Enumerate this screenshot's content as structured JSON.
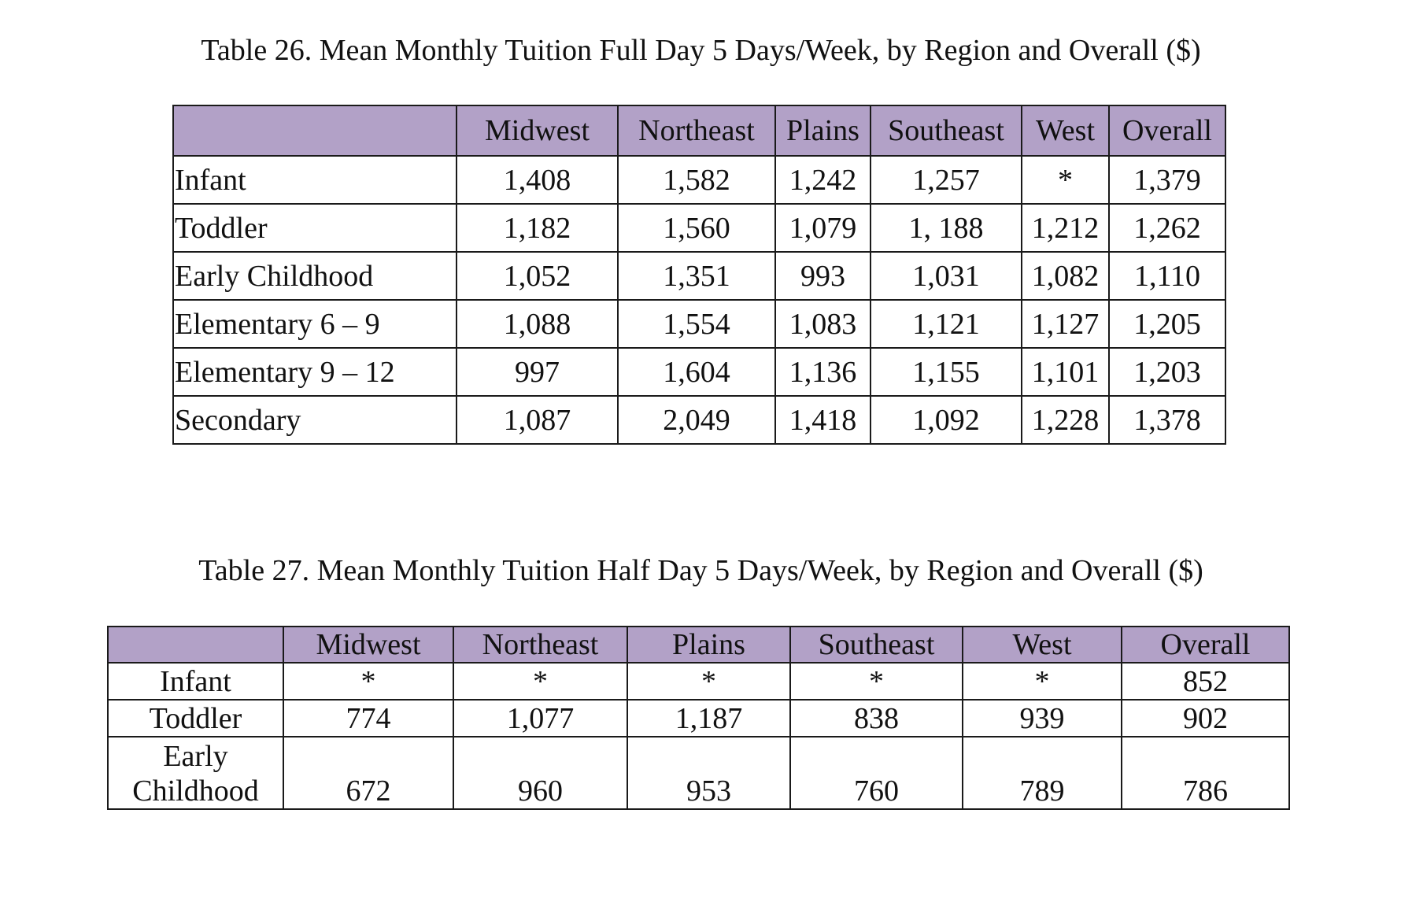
{
  "table26": {
    "caption": "Table 26. Mean Monthly Tuition Full Day 5 Days/Week, by Region and Overall ($)",
    "columns": [
      "",
      "Midwest",
      "Northeast",
      "Plains",
      "Southeast",
      "West",
      "Overall"
    ],
    "rows": [
      {
        "label": "Infant",
        "values": [
          "1,408",
          "1,582",
          "1,242",
          "1,257",
          "*",
          "1,379"
        ]
      },
      {
        "label": "Toddler",
        "values": [
          "1,182",
          "1,560",
          "1,079",
          "1, 188",
          "1,212",
          "1,262"
        ]
      },
      {
        "label": "Early Childhood",
        "values": [
          "1,052",
          "1,351",
          "993",
          "1,031",
          "1,082",
          "1,110"
        ]
      },
      {
        "label": "Elementary 6 – 9",
        "values": [
          "1,088",
          "1,554",
          "1,083",
          "1,121",
          "1,127",
          "1,205"
        ]
      },
      {
        "label": "Elementary 9 – 12",
        "values": [
          "997",
          "1,604",
          "1,136",
          "1,155",
          "1,101",
          "1,203"
        ]
      },
      {
        "label": "Secondary",
        "values": [
          "1,087",
          "2,049",
          "1,418",
          "1,092",
          "1,228",
          "1,378"
        ]
      }
    ]
  },
  "table27": {
    "caption": "Table 27. Mean Monthly Tuition Half Day 5 Days/Week, by Region and Overall ($)",
    "columns": [
      "",
      "Midwest",
      "Northeast",
      "Plains",
      "Southeast",
      "West",
      "Overall"
    ],
    "rows": [
      {
        "label": "Infant",
        "values": [
          "*",
          "*",
          "*",
          "*",
          "*",
          "852"
        ]
      },
      {
        "label": "Toddler",
        "values": [
          "774",
          "1,077",
          "1,187",
          "838",
          "939",
          "902"
        ]
      },
      {
        "label": "Early Childhood",
        "values": [
          "672",
          "960",
          "953",
          "760",
          "789",
          "786"
        ]
      }
    ]
  },
  "colors": {
    "header_background": "#b2a1c7",
    "border": "#1a1a1a",
    "text": "#111111"
  }
}
